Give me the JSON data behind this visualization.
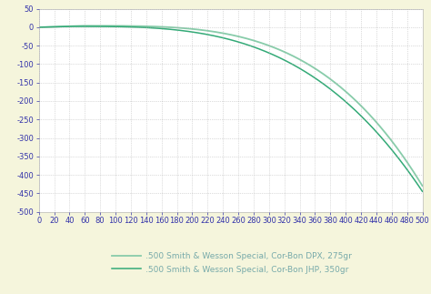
{
  "xlim": [
    0,
    500
  ],
  "ylim": [
    -500,
    50
  ],
  "xticks": [
    0,
    20,
    40,
    60,
    80,
    100,
    120,
    140,
    160,
    180,
    200,
    220,
    240,
    260,
    280,
    300,
    320,
    340,
    360,
    380,
    400,
    420,
    440,
    460,
    480,
    500
  ],
  "yticks": [
    50,
    0,
    -50,
    -100,
    -150,
    -200,
    -250,
    -300,
    -350,
    -400,
    -450,
    -500
  ],
  "outer_bg_color": "#f5f5dc",
  "plot_bg_color": "#ffffff",
  "grid_color": "#aaaaaa",
  "tick_color": "#3333aa",
  "line1_color": "#88ccaa",
  "line2_color": "#33aa77",
  "line1_label": ".500 Smith & Wesson Special, Cor-Bon DPX, 275gr",
  "line2_label": ".500 Smith & Wesson Special, Cor-Bon JHP, 350gr",
  "legend_text_color": "#77aaaa",
  "legend_fontsize": 6.5,
  "tick_fontsize": 6
}
